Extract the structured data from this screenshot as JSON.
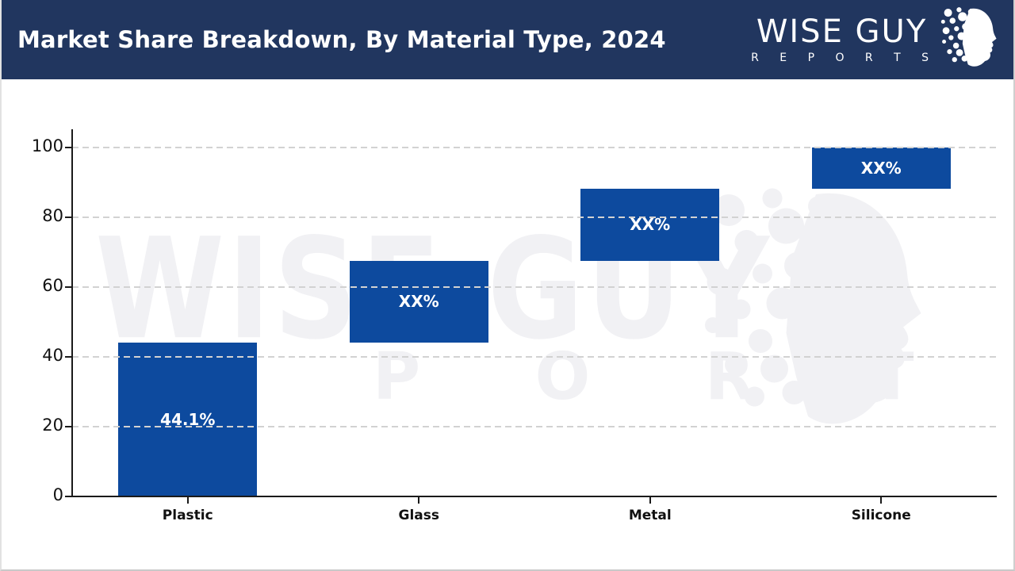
{
  "header": {
    "title": "Market Share Breakdown, By Material Type, 2024",
    "logo": {
      "brand_line1": "WISE GUY",
      "brand_line2": "R E P O R T S"
    }
  },
  "watermark": {
    "line1": "WISE GUY",
    "line2": "P O R T S"
  },
  "colors": {
    "header_bg": "#21365f",
    "bar_fill": "#0d4a9e",
    "bar_label": "#ffffff",
    "grid_line": "#d2d2d2",
    "axis": "#1a1a1a",
    "watermark": "#f1f1f4"
  },
  "chart_data": {
    "type": "bar",
    "subtype": "waterfall",
    "title": "Market Share Breakdown, By Material Type, 2024",
    "categories": [
      "Plastic",
      "Glass",
      "Metal",
      "Silicone"
    ],
    "segments": [
      {
        "category": "Plastic",
        "start": 0,
        "end": 44.1,
        "label": "44.1%"
      },
      {
        "category": "Glass",
        "start": 44.1,
        "end": 67.5,
        "label": "XX%"
      },
      {
        "category": "Metal",
        "start": 67.5,
        "end": 88.2,
        "label": "XX%"
      },
      {
        "category": "Silicone",
        "start": 88.2,
        "end": 100,
        "label": "XX%"
      }
    ],
    "yticks": [
      0,
      20,
      40,
      60,
      80,
      100
    ],
    "ylim": [
      0,
      105
    ],
    "xlabel": "",
    "ylabel": "",
    "grid": "horizontal-dashed",
    "legend": "none"
  }
}
